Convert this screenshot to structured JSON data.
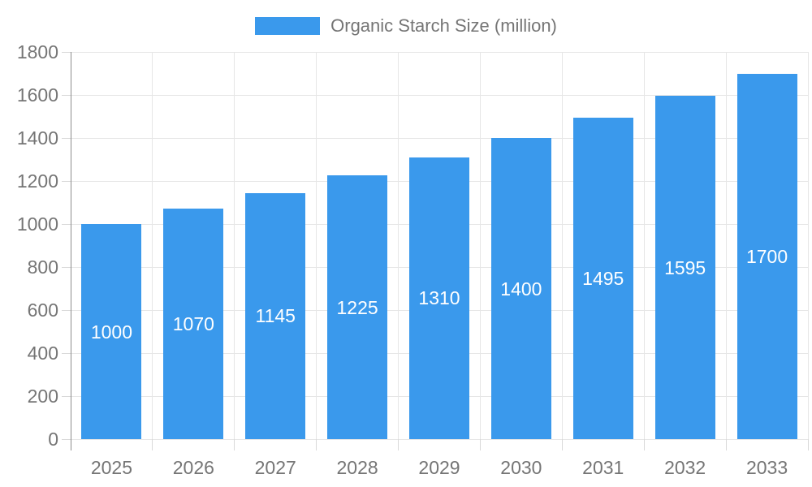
{
  "chart_data": {
    "type": "bar",
    "title": "",
    "legend": {
      "label": "Organic Starch Size (million)",
      "position": "top"
    },
    "categories": [
      "2025",
      "2026",
      "2027",
      "2028",
      "2029",
      "2030",
      "2031",
      "2032",
      "2033"
    ],
    "series": [
      {
        "name": "Organic Starch Size (million)",
        "values": [
          1000,
          1070,
          1145,
          1225,
          1310,
          1400,
          1495,
          1595,
          1700
        ]
      }
    ],
    "value_labels": [
      "1000",
      "1070",
      "1145",
      "1225",
      "1310",
      "1400",
      "1495",
      "1595",
      "1700"
    ],
    "xlabel": "",
    "ylabel": "",
    "ylim": [
      0,
      1800
    ],
    "ytick_step": 200,
    "ytick_labels": [
      "0",
      "200",
      "400",
      "600",
      "800",
      "1000",
      "1200",
      "1400",
      "1600",
      "1800"
    ],
    "grid": "horizontal and vertical light gridlines",
    "colors": {
      "bar": "#3a99ec",
      "value_label_text": "#ffffff",
      "axis_text": "#757575",
      "gridline": "#e6e6e6",
      "axis_line": "#8c8c8c"
    }
  }
}
